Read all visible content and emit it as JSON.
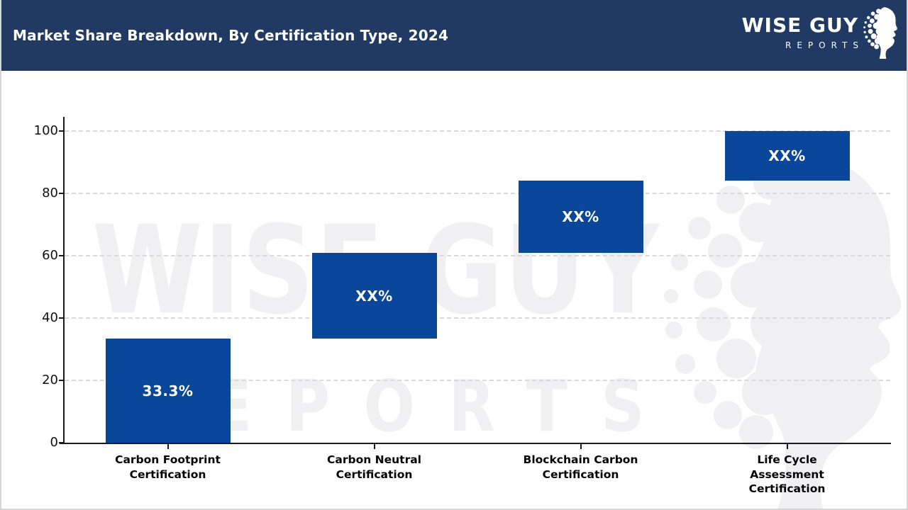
{
  "header": {
    "title": "Market Share Breakdown, By Certification Type, 2024",
    "logo": {
      "line1": "WISE GUY",
      "line2": "REPORTS"
    }
  },
  "watermark": {
    "line1": "WISE GUY",
    "line2": "REPORTS"
  },
  "colors": {
    "header_bg": "#213A64",
    "bar": "#0A4699",
    "bar_label": "#ffffff",
    "title_text": "#ffffff",
    "axis": "#1a1a1a",
    "grid": "#d9d9d9",
    "watermark": "#f0f0f2",
    "frame_border": "#d6d6d6"
  },
  "chart_data": {
    "type": "bar",
    "subtype": "floating-segment waterfall (cumulative market share)",
    "title": "Market Share Breakdown, By Certification Type, 2024",
    "categories": [
      "Carbon Footprint Certification",
      "Carbon Neutral Certification",
      "Blockchain Carbon Certification",
      "Life Cycle Assessment Certification"
    ],
    "category_label_lines": [
      [
        "Carbon Footprint",
        "Certification"
      ],
      [
        "Carbon Neutral",
        "Certification"
      ],
      [
        "Blockchain Carbon",
        "Certification"
      ],
      [
        "Life Cycle",
        "Assessment",
        "Certification"
      ]
    ],
    "series": [
      {
        "name": "Market share (%)",
        "segments": [
          {
            "category": "Carbon Footprint Certification",
            "from": 0,
            "to": 33.3,
            "label": "33.3%"
          },
          {
            "category": "Carbon Neutral Certification",
            "from": 33.3,
            "to": 61,
            "label": "XX%"
          },
          {
            "category": "Blockchain Carbon Certification",
            "from": 61,
            "to": 84,
            "label": "XX%"
          },
          {
            "category": "Life Cycle Assessment Certification",
            "from": 84,
            "to": 100,
            "label": "XX%"
          }
        ]
      }
    ],
    "ylim": [
      0,
      100
    ],
    "yticks": [
      0,
      20,
      40,
      60,
      80,
      100
    ],
    "xlabel": "",
    "ylabel": "",
    "grid": {
      "axis": "y",
      "style": "dashed"
    },
    "legend": "none"
  }
}
